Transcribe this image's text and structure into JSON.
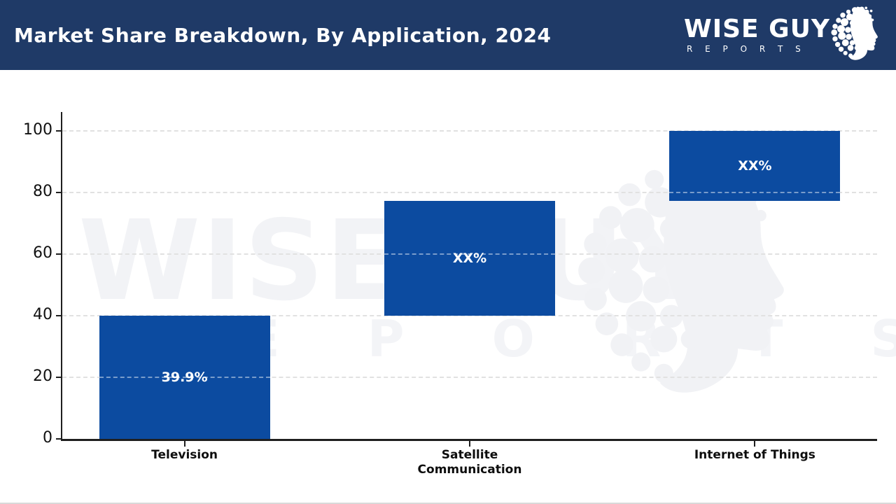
{
  "header": {
    "title": "Market Share Breakdown, By Application, 2024",
    "logo": {
      "line1": "WISE GUY",
      "line2": "R E P O R T S"
    }
  },
  "watermark": {
    "line1": "WISE GUY",
    "line2": "R E P O R T S"
  },
  "colors": {
    "header_bg": "#1f3a67",
    "bar": "#0c4ba0",
    "axis": "#1f1f1f",
    "gridline": "#e1e1e1",
    "bar_label": "#ffffff",
    "watermark": "#f2f3f6"
  },
  "chart_data": {
    "type": "bar",
    "subtype": "waterfall-floating-bars",
    "title": "Market Share Breakdown, By Application, 2024",
    "categories": [
      "Television",
      "Satellite Communication",
      "Internet of Things"
    ],
    "category_lines": [
      [
        "Television"
      ],
      [
        "Satellite",
        "Communication"
      ],
      [
        "Internet of Things"
      ]
    ],
    "segments": [
      {
        "category": "Television",
        "start": 0,
        "end": 39.9,
        "label": "39.9%"
      },
      {
        "category": "Satellite Communication",
        "start": 39.9,
        "end": 77.2,
        "label": "XX%"
      },
      {
        "category": "Internet of Things",
        "start": 77.2,
        "end": 100,
        "label": "XX%"
      }
    ],
    "ylim": [
      0,
      105
    ],
    "yticks": [
      0,
      20,
      40,
      60,
      80,
      100
    ],
    "xlabel": "",
    "ylabel": "",
    "grid": "dashed-horizontal",
    "legend": "none"
  }
}
